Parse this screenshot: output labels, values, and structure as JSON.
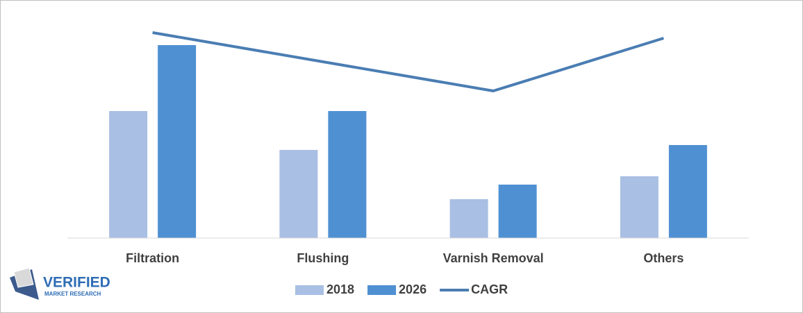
{
  "chart_data": {
    "type": "bar",
    "categories": [
      "Filtration",
      "Flushing",
      "Varnish Removal",
      "Others"
    ],
    "series": [
      {
        "name": "2018",
        "color": "#a9bfe3",
        "values": [
          183,
          127,
          56,
          89
        ]
      },
      {
        "name": "2026",
        "color": "#4f90d2",
        "values": [
          278,
          183,
          77,
          134
        ]
      },
      {
        "name": "CAGR",
        "color": "#4a7db3",
        "type": "line",
        "axis": "y2",
        "values": [
          296,
          254,
          212,
          288
        ]
      }
    ],
    "ylim": [
      0,
      300
    ],
    "y2lim": [
      0,
      300
    ],
    "grid": false,
    "legend": "bottom"
  },
  "logo": {
    "name": "VERIFIED",
    "tagline": "MARKET RESEARCH"
  }
}
